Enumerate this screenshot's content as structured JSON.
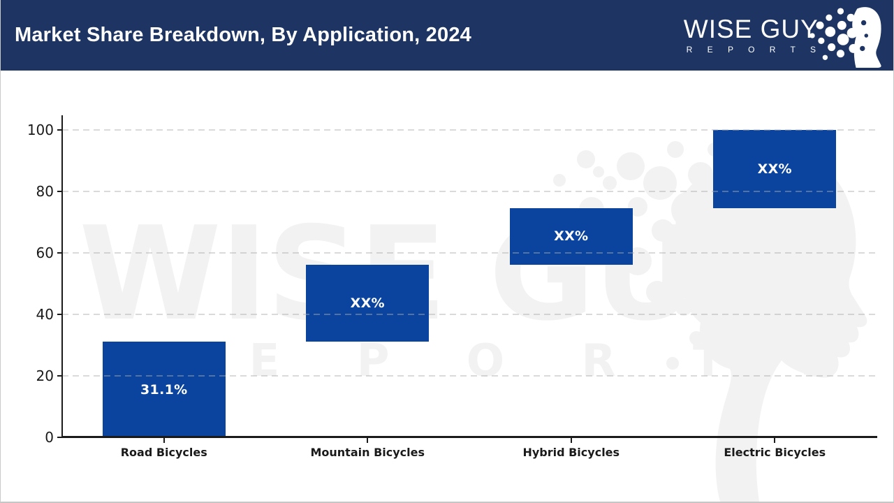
{
  "header": {
    "title": "Market Share Breakdown, By Application, 2024",
    "background_color": "#1e3563",
    "logo": {
      "wordmark": "WISE GUY",
      "subtext": "R E P O R T S"
    }
  },
  "watermark": {
    "wordmark": "WISE GUY",
    "subtext": "R E P O R T S"
  },
  "chart_data": {
    "type": "bar",
    "subtype": "waterfall",
    "title": "Market Share Breakdown, By Application, 2024",
    "categories": [
      "Road Bicycles",
      "Mountain Bicycles",
      "Hybrid Bicycles",
      "Electric Bicycles"
    ],
    "segments": [
      {
        "category": "Road Bicycles",
        "start": 0,
        "end": 31.1,
        "label": "31.1%"
      },
      {
        "category": "Mountain Bicycles",
        "start": 31.1,
        "end": 56.1,
        "label": "XX%"
      },
      {
        "category": "Hybrid Bicycles",
        "start": 56.1,
        "end": 74.6,
        "label": "XX%"
      },
      {
        "category": "Electric Bicycles",
        "start": 74.6,
        "end": 100,
        "label": "XX%"
      }
    ],
    "values_note": "XX% labels are masked in source; start/end spans estimated from gridlines",
    "ylim": [
      0,
      100
    ],
    "yticks": [
      0,
      20,
      40,
      60,
      80,
      100
    ],
    "grid": "horizontal-dashed",
    "legend": "none",
    "bar_color": "#0a449e",
    "bar_label_color": "#ffffff",
    "axis_color": "#1a1a1a",
    "gridline_color": "#d9d9d9"
  }
}
